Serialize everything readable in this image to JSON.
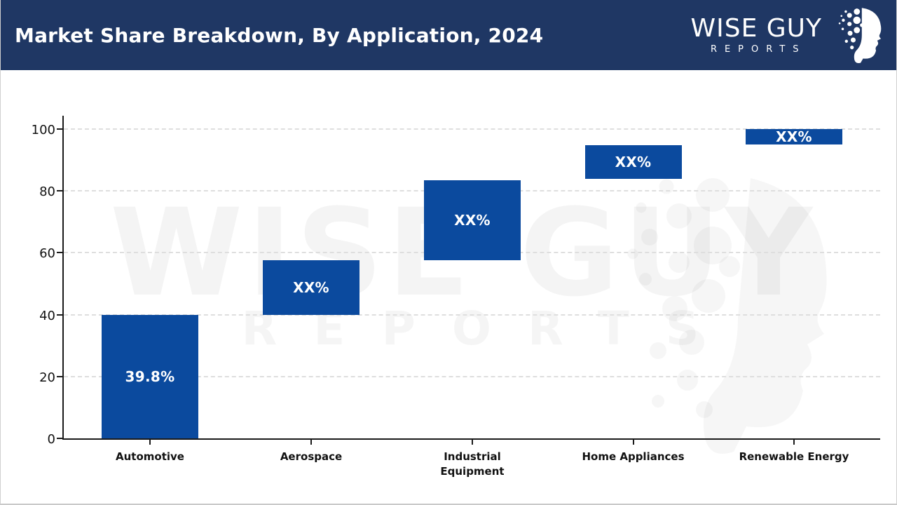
{
  "header": {
    "title": "Market Share Breakdown, By Application, 2024",
    "logo": {
      "line1": "WISE GUY",
      "line2": "REPORTS"
    }
  },
  "watermark": {
    "line1": "WISE GUY",
    "line2": "REPORTS"
  },
  "colors": {
    "header_bg": "#1f3764",
    "bar": "#0b4a9e",
    "bar_label": "#ffffff",
    "gridline": "#dedede",
    "axis": "#1a1a1a"
  },
  "chart_data": {
    "type": "bar",
    "subtype": "waterfall",
    "title": "Market Share Breakdown, By Application, 2024",
    "xlabel": "",
    "ylabel": "",
    "ylim": [
      0,
      104
    ],
    "y_ticks": [
      0,
      20,
      40,
      60,
      80,
      100
    ],
    "grid": "dashed-horizontal",
    "legend": "none",
    "categories": [
      "Automotive",
      "Aerospace",
      "Industrial Equipment",
      "Home Appliances",
      "Renewable Energy"
    ],
    "segments": [
      {
        "category": "Automotive",
        "tick_label": "Automotive",
        "start": 0,
        "end": 39.8,
        "value_label": "39.8%"
      },
      {
        "category": "Aerospace",
        "tick_label": "Aerospace",
        "start": 39.8,
        "end": 57.5,
        "value_label": "XX%"
      },
      {
        "category": "Industrial Equipment",
        "tick_label": "Industrial\nEquipment",
        "start": 57.5,
        "end": 83.5,
        "value_label": "XX%"
      },
      {
        "category": "Home Appliances",
        "tick_label": "Home Appliances",
        "start": 84,
        "end": 94.7,
        "value_label": "XX%"
      },
      {
        "category": "Renewable Energy",
        "tick_label": "Renewable Energy",
        "start": 95,
        "end": 100,
        "value_label": "XX%"
      }
    ]
  }
}
